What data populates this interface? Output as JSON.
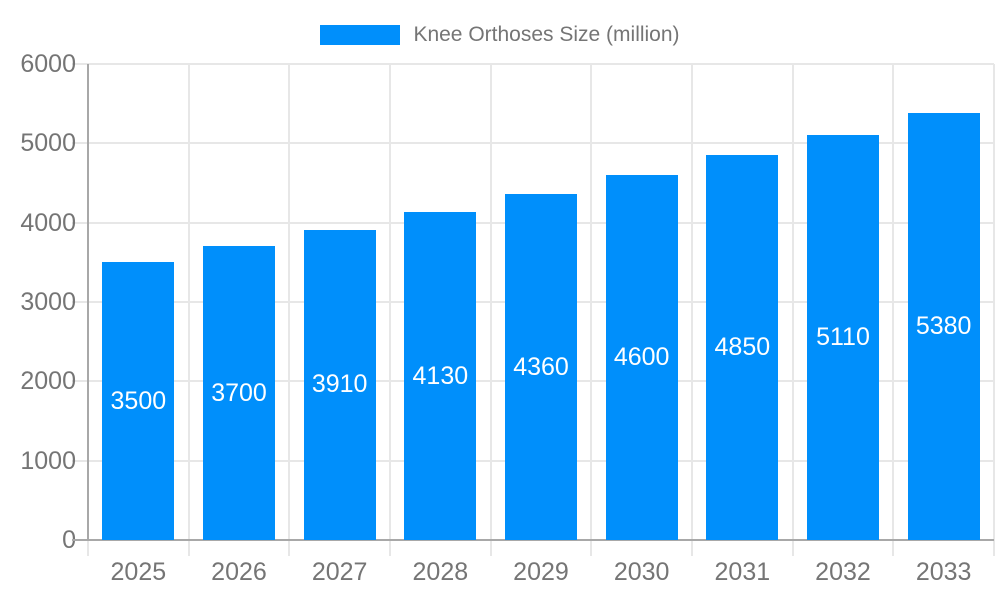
{
  "chart_data": {
    "type": "bar",
    "title": "Knee Orthoses Size (million)",
    "categories": [
      "2025",
      "2026",
      "2027",
      "2028",
      "2029",
      "2030",
      "2031",
      "2032",
      "2033"
    ],
    "values": [
      3500,
      3700,
      3910,
      4130,
      4360,
      4600,
      4850,
      5110,
      5380
    ],
    "series": [
      {
        "name": "Knee Orthoses Size (million)",
        "values": [
          3500,
          3700,
          3910,
          4130,
          4360,
          4600,
          4850,
          5110,
          5380
        ]
      }
    ],
    "xlabel": "",
    "ylabel": "",
    "ylim": [
      0,
      6000
    ],
    "yticks": [
      0,
      1000,
      2000,
      3000,
      4000,
      5000,
      6000
    ],
    "grid": "on",
    "legend_position": "top",
    "data_labels": "inside-center",
    "colors": {
      "bar": "#008FFB",
      "bar_label": "#ffffff",
      "axis_text": "#757575",
      "title_text": "#757575",
      "gridline": "#e7e7e7",
      "axis_line": "#a8a8a8",
      "background": "#ffffff"
    }
  }
}
